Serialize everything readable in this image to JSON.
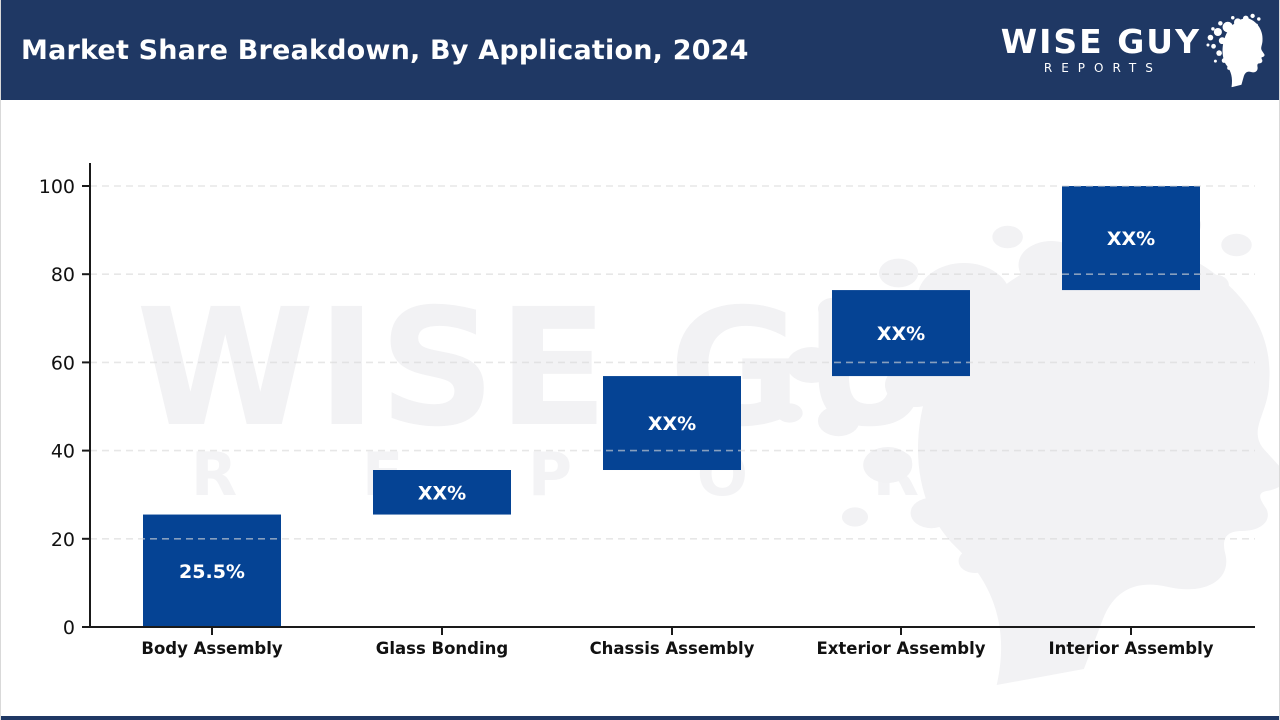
{
  "header": {
    "title": "Market Share Breakdown, By Application, 2024",
    "logo": {
      "line1": "WISE GUY",
      "line2": "REPORTS"
    }
  },
  "watermark": {
    "line1": "WISE GUY",
    "line2": "R E P O R T S"
  },
  "colors": {
    "header_bg": "#1F3864",
    "footer_bg": "#1F3864",
    "bar": "#054394",
    "bar_label": "#ffffff",
    "axis": "#1a1a1a",
    "tick_label": "#111111",
    "grid": "#d9d9d9",
    "watermark": "#f2f2f4"
  },
  "chart_data": {
    "type": "bar",
    "subtype": "waterfall",
    "title": "Market Share Breakdown, By Application, 2024",
    "xlabel": "",
    "ylabel": "",
    "categories": [
      "Body Assembly",
      "Glass Bonding",
      "Chassis Assembly",
      "Exterior Assembly",
      "Interior Assembly"
    ],
    "segments": [
      {
        "category": "Body Assembly",
        "start": 0,
        "end": 25.5,
        "label": "25.5%"
      },
      {
        "category": "Glass Bonding",
        "start": 25.5,
        "end": 35.6,
        "label": "XX%"
      },
      {
        "category": "Chassis Assembly",
        "start": 35.6,
        "end": 56.9,
        "label": "XX%"
      },
      {
        "category": "Exterior Assembly",
        "start": 56.9,
        "end": 76.4,
        "label": "XX%"
      },
      {
        "category": "Interior Assembly",
        "start": 76.4,
        "end": 100,
        "label": "XX%"
      }
    ],
    "yticks": [
      0,
      20,
      40,
      60,
      80,
      100
    ],
    "ylim": [
      0,
      105
    ],
    "grid": "horizontal-dashed",
    "legend": "none"
  }
}
